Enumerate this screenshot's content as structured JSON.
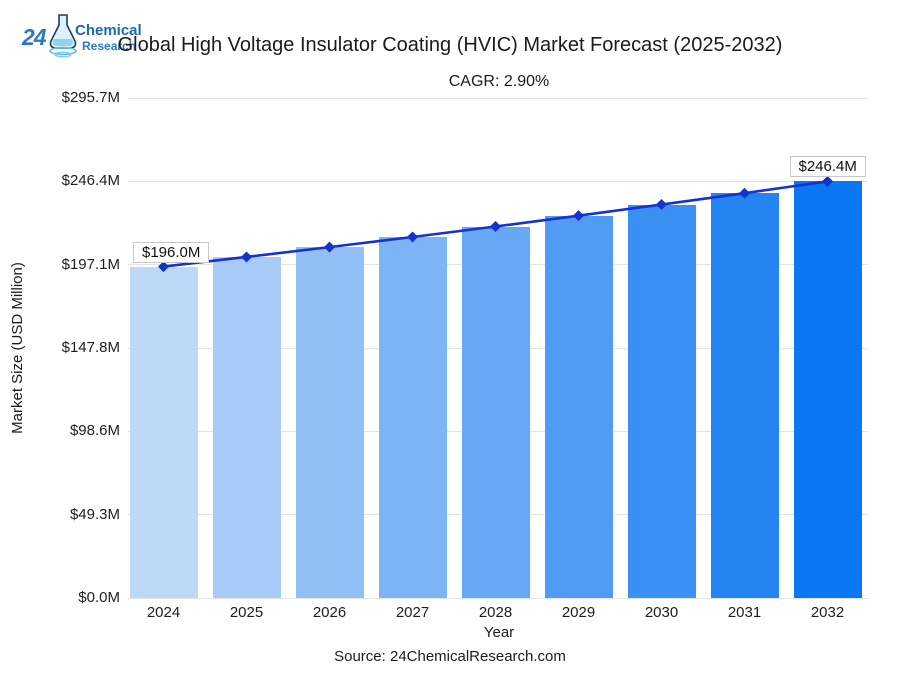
{
  "logo": {
    "number": "24",
    "word1": "Chemical",
    "word2": "Research",
    "brand_color": "#2b79c2"
  },
  "header": {
    "title": "Global High Voltage Insulator Coating (HVIC) Market Forecast (2025-2032)",
    "subtitle": "CAGR: 2.90%"
  },
  "chart_data": {
    "type": "bar",
    "title": "Global High Voltage Insulator Coating (HVIC) Market Forecast (2025-2032)",
    "subtitle": "CAGR: 2.90%",
    "xlabel": "Year",
    "ylabel": "Market Size (USD Million)",
    "categories": [
      "2024",
      "2025",
      "2026",
      "2027",
      "2028",
      "2029",
      "2030",
      "2031",
      "2032"
    ],
    "series": [
      {
        "name": "Market Size (USD Million)",
        "type": "bar",
        "values": [
          196.0,
          201.7,
          207.5,
          213.5,
          219.7,
          226.1,
          232.7,
          239.4,
          246.4
        ]
      },
      {
        "name": "Trend line",
        "type": "line",
        "values": [
          196.0,
          201.7,
          207.5,
          213.5,
          219.7,
          226.1,
          232.7,
          239.4,
          246.4
        ]
      }
    ],
    "ylim": [
      0,
      295.7
    ],
    "ytick_labels": [
      "$0.0M",
      "$49.3M",
      "$98.6M",
      "$147.8M",
      "$197.1M",
      "$246.4M",
      "$295.7M"
    ],
    "grid": true,
    "legend": "none",
    "annotations": [
      {
        "category": "2024",
        "text": "$196.0M"
      },
      {
        "category": "2032",
        "text": "$246.4M"
      }
    ],
    "bar_colors": [
      "#bed8f8",
      "#a8ccf7",
      "#92c0f6",
      "#7cb4f5",
      "#66a8f4",
      "#509cf4",
      "#3a90f3",
      "#2484f2",
      "#0b77f2"
    ],
    "line_color": "#1433cc",
    "gridline_color": "#e4e4e4"
  },
  "footer": {
    "source": "Source: 24ChemicalResearch.com"
  }
}
